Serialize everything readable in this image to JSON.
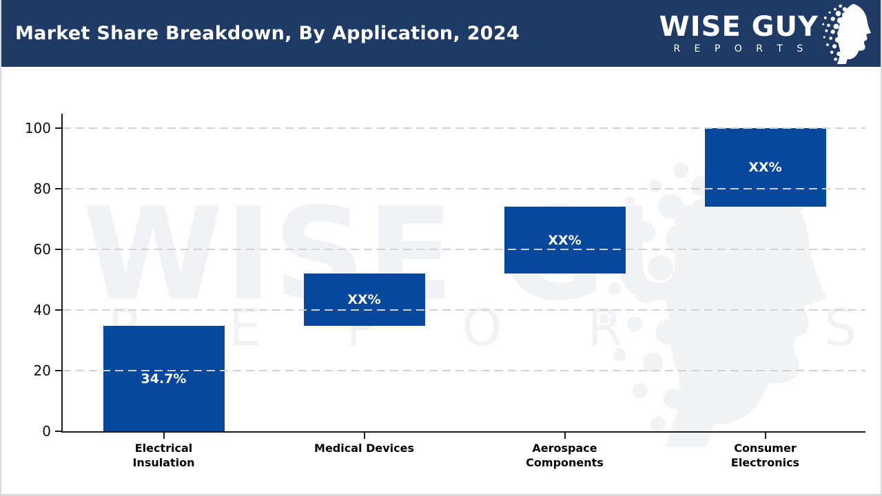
{
  "header": {
    "title": "Market Share Breakdown, By Application, 2024",
    "logo": {
      "name": "WISE GUY",
      "subtitle": "R E P O R T S"
    }
  },
  "watermark": {
    "name": "WISE GUY",
    "subtitle": "R E P O R T S"
  },
  "chart_data": {
    "type": "bar",
    "subtype": "floating-waterfall",
    "title": "Market Share Breakdown, By Application, 2024",
    "categories": [
      "Electrical Insulation",
      "Medical Devices",
      "Aerospace Components",
      "Consumer Electronics"
    ],
    "category_lines": [
      [
        "Electrical",
        "Insulation"
      ],
      [
        "Medical Devices"
      ],
      [
        "Aerospace",
        "Components"
      ],
      [
        "Consumer",
        "Electronics"
      ]
    ],
    "bars": [
      {
        "category": "Electrical Insulation",
        "start": 0,
        "end": 34.7,
        "label": "34.7%"
      },
      {
        "category": "Medical Devices",
        "start": 34.7,
        "end": 52,
        "label": "XX%"
      },
      {
        "category": "Aerospace Components",
        "start": 52,
        "end": 74,
        "label": "XX%"
      },
      {
        "category": "Consumer Electronics",
        "start": 74,
        "end": 100,
        "label": "XX%"
      }
    ],
    "yticks": [
      0,
      20,
      40,
      60,
      80,
      100
    ],
    "ylim": [
      0,
      100
    ],
    "xlabel": "",
    "ylabel": "",
    "grid": "horizontal dashed lines drawn over bars",
    "legend": "none"
  },
  "colors": {
    "header_bg": "#203a66",
    "bar": "#08489c",
    "axis": "#1a1a1a",
    "grid": "#d2d2d2",
    "watermark": "#f1f2f5",
    "canvas": "#ffffff",
    "border": "#d9d9d9",
    "bar_label": "#ffffff"
  }
}
